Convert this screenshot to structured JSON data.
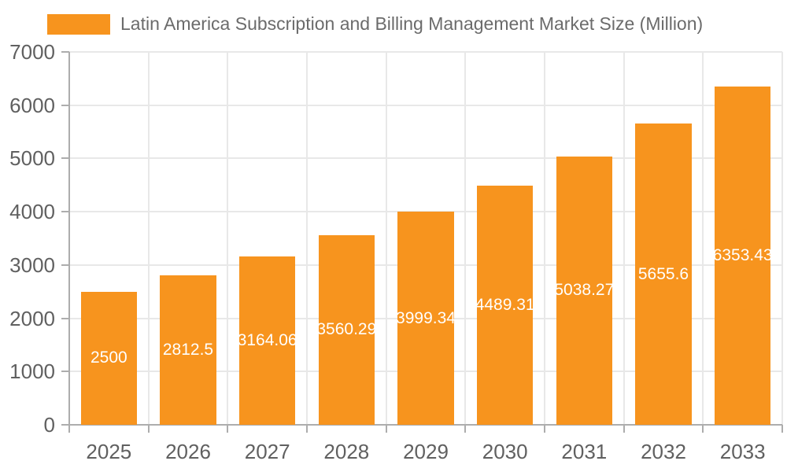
{
  "chart_data": {
    "type": "bar",
    "legend": "Latin America Subscription and Billing Management Market Size (Million)",
    "legend_position": "top-left",
    "categories": [
      "2025",
      "2026",
      "2027",
      "2028",
      "2029",
      "2030",
      "2031",
      "2032",
      "2033"
    ],
    "values": [
      2500,
      2812.5,
      3164.06,
      3560.29,
      3999.34,
      4489.31,
      5038.27,
      5655.6,
      6353.43
    ],
    "value_labels": [
      "2500",
      "2812.5",
      "3164.06",
      "3560.29",
      "3999.34",
      "4489.31",
      "5038.27",
      "5655.6",
      "6353.43"
    ],
    "xlabel": "",
    "ylabel": "",
    "ylim": [
      0,
      7000
    ],
    "yticks": [
      0,
      1000,
      2000,
      3000,
      4000,
      5000,
      6000,
      7000
    ],
    "grid": "horizontal and vertical gridlines",
    "colors": {
      "bar": "#F7941E",
      "value_label": "#FFFFFF",
      "axis_text": "#606060",
      "legend_text": "#6B6B6B",
      "gridline": "#E8E8E8",
      "axis_line": "#ADADAD",
      "background": "#FFFFFF"
    }
  }
}
